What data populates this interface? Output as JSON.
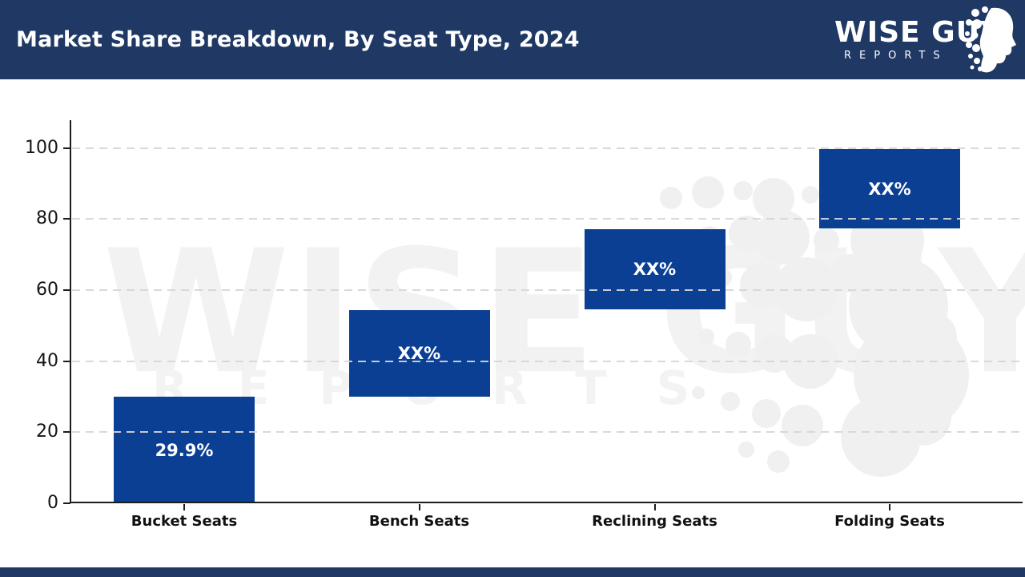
{
  "header": {
    "title": "Market Share Breakdown, By Seat Type, 2024",
    "brand": {
      "line1": "WISE GUY",
      "line2": "REPORTS"
    }
  },
  "watermark": {
    "line1": "WISE GUY",
    "line2": "REPORTS"
  },
  "chart_data": {
    "type": "bar",
    "subtype": "waterfall-market-share",
    "title": "Market Share Breakdown, By Seat Type, 2024",
    "categories": [
      "Bucket Seats",
      "Bench Seats",
      "Reclining Seats",
      "Folding Seats"
    ],
    "segments": [
      {
        "label": "29.9%",
        "start": 0,
        "end": 29.9
      },
      {
        "label": "XX%",
        "start": 30.0,
        "end": 54.3
      },
      {
        "label": "XX%",
        "start": 54.5,
        "end": 77.1
      },
      {
        "label": "XX%",
        "start": 77.3,
        "end": 99.8
      }
    ],
    "yticks": [
      0,
      20,
      40,
      60,
      80,
      100
    ],
    "ylim": [
      0,
      107
    ],
    "grid": "horizontal-dashed-over-bars",
    "legend": "none",
    "xlabel": "",
    "ylabel": ""
  },
  "colors": {
    "header_bg": "#1f3864",
    "footer_bg": "#1f3864",
    "bar": "#0a3f94",
    "axis": "#1c1c1c",
    "grid": "#d6d6d6",
    "watermark": "#f1f1f1",
    "title_text": "#ffffff",
    "bar_label_text": "#ffffff",
    "tick_text": "#141414"
  }
}
